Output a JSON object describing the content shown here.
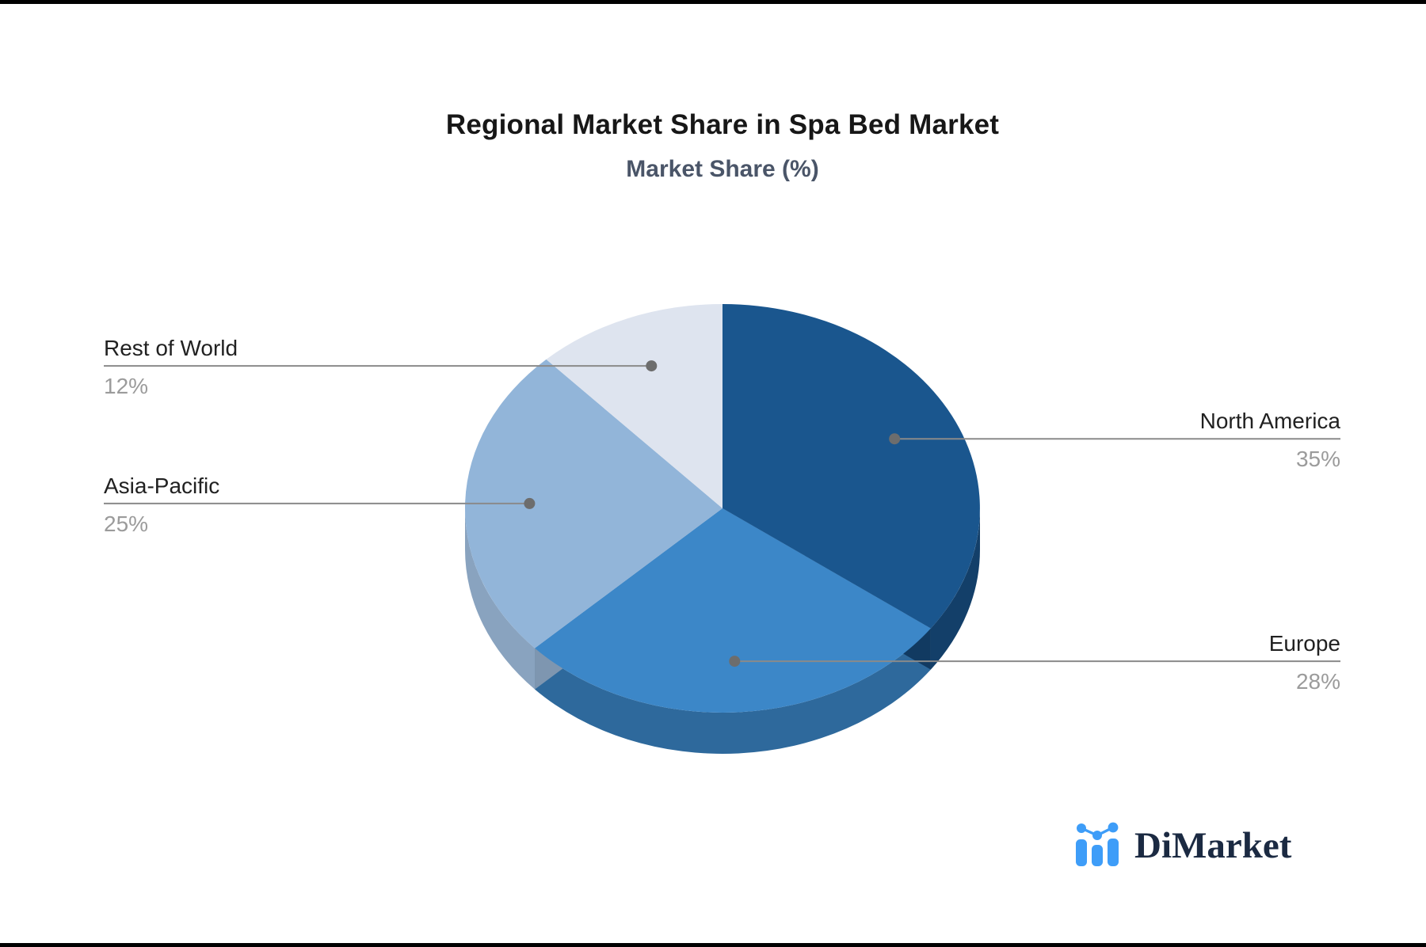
{
  "chart_data": {
    "type": "pie",
    "effect": "3d",
    "title": "Regional Market Share in Spa Bed Market",
    "subtitle": "Market Share (%)",
    "direction": "clockwise",
    "start_angle": "12-o-clock",
    "slices": [
      {
        "label": "North America",
        "value": 35,
        "display": "35%",
        "color": "#1A568E",
        "side_color": "#133F69"
      },
      {
        "label": "Europe",
        "value": 28,
        "display": "28%",
        "color": "#3C87C8",
        "side_color": "#2E699C"
      },
      {
        "label": "Asia-Pacific",
        "value": 25,
        "display": "25%",
        "color": "#92B5D9",
        "side_color": "#89A3BF"
      },
      {
        "label": "Rest of World",
        "value": 12,
        "display": "12%",
        "color": "#DEE4EF",
        "side_color": "#BAC4D3"
      }
    ],
    "leader_color": "#8A8A8A",
    "dot_color": "#6D6D6D",
    "label_color": "#212121",
    "value_color": "#9B9B9B",
    "legend": "none"
  },
  "branding": {
    "logo_text": "DiMarket",
    "logo_icon": "bar-chart-trend-icon",
    "logo_text_color": "#1B2A42",
    "logo_icon_color": "#3E9DF8"
  }
}
